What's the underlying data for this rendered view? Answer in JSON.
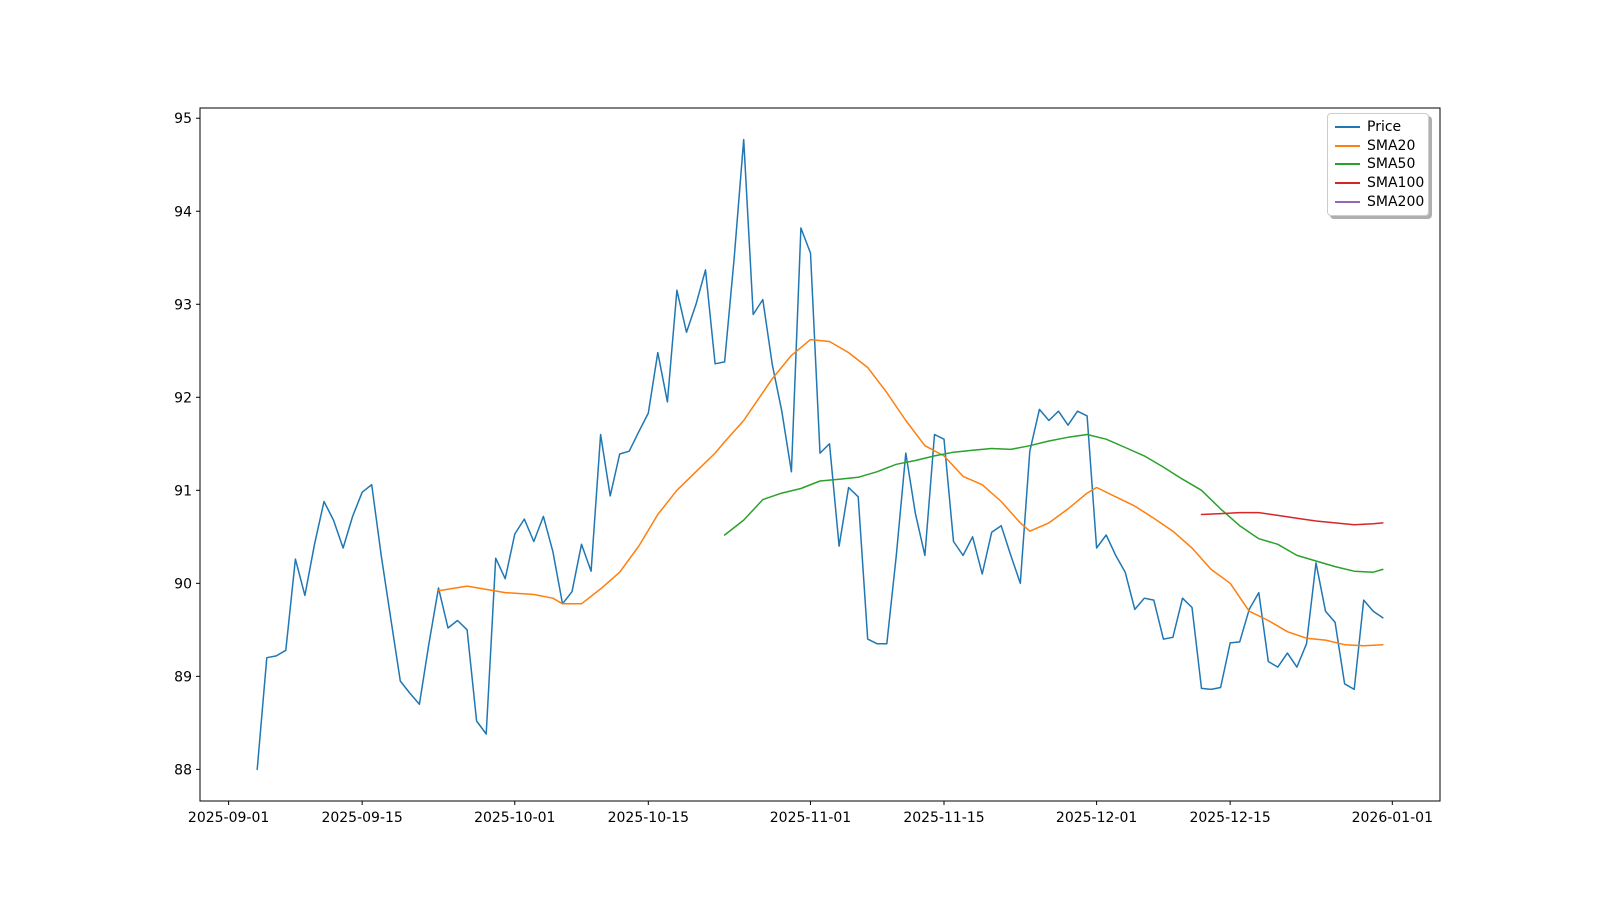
{
  "chart_data": {
    "type": "line",
    "title": "",
    "xlabel": "",
    "ylabel": "",
    "grid": false,
    "x_axis": {
      "lim": [
        "2025-08-29",
        "2026-01-06"
      ],
      "ticks": [
        "2025-09-01",
        "2025-09-15",
        "2025-10-01",
        "2025-10-15",
        "2025-11-01",
        "2025-11-15",
        "2025-12-01",
        "2025-12-15",
        "2026-01-01"
      ]
    },
    "y_axis": {
      "lim": [
        87.66,
        95.11
      ],
      "ticks": [
        "88",
        "89",
        "90",
        "91",
        "92",
        "93",
        "94",
        "95"
      ]
    },
    "legend": {
      "position": "upper right",
      "entries": [
        "Price",
        "SMA20",
        "SMA50",
        "SMA100",
        "SMA200"
      ]
    },
    "series": [
      {
        "name": "Price",
        "color": "#1f77b4",
        "freq": "daily",
        "start": "2025-09-04",
        "values": [
          88.0,
          89.2,
          89.22,
          89.28,
          90.26,
          89.87,
          90.42,
          90.88,
          90.68,
          90.38,
          90.72,
          90.98,
          91.06,
          90.3,
          89.62,
          88.95,
          88.82,
          88.7,
          89.35,
          89.95,
          89.52,
          89.6,
          89.5,
          88.52,
          88.38,
          90.27,
          90.05,
          90.53,
          90.69,
          90.45,
          90.72,
          90.34,
          89.78,
          89.91,
          90.42,
          90.13,
          91.6,
          90.94,
          91.39,
          91.42,
          91.63,
          91.83,
          92.48,
          91.95,
          93.15,
          92.7,
          93.0,
          93.37,
          92.36,
          92.38,
          93.5,
          94.77,
          92.89,
          93.05,
          92.35,
          91.85,
          91.2,
          93.82,
          93.55,
          91.4,
          91.5,
          90.4,
          91.03,
          90.93,
          89.4,
          89.35,
          89.35,
          90.3,
          91.4,
          90.75,
          90.3,
          91.6,
          91.55,
          90.45,
          90.3,
          90.5,
          90.1,
          90.55,
          90.62,
          90.3,
          90.0,
          91.42,
          91.87,
          91.75,
          91.85,
          91.7,
          91.85,
          91.8,
          90.38,
          90.52,
          90.3,
          90.12,
          89.72,
          89.84,
          89.82,
          89.4,
          89.42,
          89.84,
          89.74,
          88.87,
          88.86,
          88.88,
          89.36,
          89.37,
          89.72,
          89.9,
          89.16,
          89.1,
          89.25,
          89.1,
          89.35,
          90.22,
          89.7,
          89.58,
          88.92,
          88.86,
          89.82,
          89.7,
          89.63
        ]
      },
      {
        "name": "SMA20",
        "color": "#ff7f0e",
        "dates": [
          "2025-09-23",
          "2025-09-26",
          "2025-09-30",
          "2025-10-03",
          "2025-10-05",
          "2025-10-06",
          "2025-10-08",
          "2025-10-10",
          "2025-10-12",
          "2025-10-14",
          "2025-10-16",
          "2025-10-18",
          "2025-10-20",
          "2025-10-22",
          "2025-10-23",
          "2025-10-25",
          "2025-10-26",
          "2025-10-28",
          "2025-10-30",
          "2025-11-01",
          "2025-11-03",
          "2025-11-05",
          "2025-11-07",
          "2025-11-09",
          "2025-11-11",
          "2025-11-13",
          "2025-11-15",
          "2025-11-17",
          "2025-11-19",
          "2025-11-21",
          "2025-11-23",
          "2025-11-24",
          "2025-11-26",
          "2025-11-28",
          "2025-11-30",
          "2025-12-01",
          "2025-12-03",
          "2025-12-05",
          "2025-12-07",
          "2025-12-09",
          "2025-12-11",
          "2025-12-13",
          "2025-12-15",
          "2025-12-17",
          "2025-12-19",
          "2025-12-21",
          "2025-12-23",
          "2025-12-25",
          "2025-12-27",
          "2025-12-29",
          "2025-12-31"
        ],
        "values": [
          89.92,
          89.97,
          89.9,
          89.88,
          89.84,
          89.78,
          89.78,
          89.94,
          90.12,
          90.4,
          90.74,
          91.0,
          91.2,
          91.4,
          91.52,
          91.75,
          91.9,
          92.2,
          92.45,
          92.62,
          92.6,
          92.48,
          92.32,
          92.05,
          91.75,
          91.48,
          91.37,
          91.15,
          91.06,
          90.88,
          90.65,
          90.56,
          90.65,
          90.8,
          90.97,
          91.03,
          90.93,
          90.83,
          90.7,
          90.56,
          90.38,
          90.15,
          90.0,
          89.7,
          89.6,
          89.48,
          89.41,
          89.39,
          89.34,
          89.33,
          89.34
        ]
      },
      {
        "name": "SMA50",
        "color": "#2ca02c",
        "dates": [
          "2025-10-23",
          "2025-10-25",
          "2025-10-27",
          "2025-10-29",
          "2025-10-31",
          "2025-11-02",
          "2025-11-04",
          "2025-11-06",
          "2025-11-08",
          "2025-11-10",
          "2025-11-12",
          "2025-11-14",
          "2025-11-16",
          "2025-11-18",
          "2025-11-20",
          "2025-11-22",
          "2025-11-24",
          "2025-11-26",
          "2025-11-28",
          "2025-11-30",
          "2025-12-02",
          "2025-12-04",
          "2025-12-06",
          "2025-12-08",
          "2025-12-10",
          "2025-12-12",
          "2025-12-14",
          "2025-12-16",
          "2025-12-18",
          "2025-12-20",
          "2025-12-22",
          "2025-12-24",
          "2025-12-26",
          "2025-12-28",
          "2025-12-30",
          "2025-12-31"
        ],
        "values": [
          90.52,
          90.68,
          90.9,
          90.97,
          91.02,
          91.1,
          91.12,
          91.14,
          91.2,
          91.28,
          91.32,
          91.37,
          91.41,
          91.43,
          91.45,
          91.44,
          91.48,
          91.53,
          91.57,
          91.6,
          91.55,
          91.46,
          91.37,
          91.25,
          91.12,
          91.0,
          90.8,
          90.62,
          90.48,
          90.42,
          90.3,
          90.24,
          90.18,
          90.13,
          90.12,
          90.15
        ]
      },
      {
        "name": "SMA100",
        "color": "#d62728",
        "dates": [
          "2025-12-12",
          "2025-12-14",
          "2025-12-16",
          "2025-12-18",
          "2025-12-20",
          "2025-12-22",
          "2025-12-24",
          "2025-12-26",
          "2025-12-28",
          "2025-12-30",
          "2025-12-31"
        ],
        "values": [
          90.74,
          90.75,
          90.76,
          90.76,
          90.73,
          90.7,
          90.67,
          90.65,
          90.63,
          90.64,
          90.65
        ]
      },
      {
        "name": "SMA200",
        "color": "#9467bd",
        "dates": [],
        "values": []
      }
    ]
  }
}
